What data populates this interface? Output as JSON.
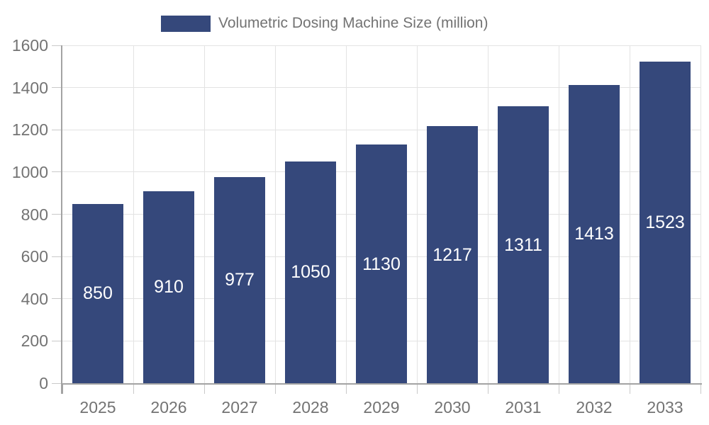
{
  "chart_data": {
    "type": "bar",
    "title": "",
    "xlabel": "",
    "ylabel": "",
    "categories": [
      "2025",
      "2026",
      "2027",
      "2028",
      "2029",
      "2030",
      "2031",
      "2032",
      "2033"
    ],
    "series": [
      {
        "name": "Volumetric Dosing Machine Size (million)",
        "values": [
          850,
          910,
          977,
          1050,
          1130,
          1217,
          1311,
          1413,
          1523
        ]
      }
    ],
    "bar_value_labels": [
      "850",
      "910",
      "977",
      "1050",
      "1130",
      "1217",
      "1311",
      "1413",
      "1523"
    ],
    "ylim": [
      0,
      1600
    ],
    "ytick_step": 200,
    "ytick_labels": [
      "0",
      "200",
      "400",
      "600",
      "800",
      "1000",
      "1200",
      "1400",
      "1600"
    ],
    "grid": true,
    "legend_position": "top",
    "colors": {
      "bar": "#35487B",
      "bar_label": "#FFFFFF",
      "axis_text": "#737373",
      "legend_text": "#737373",
      "grid_line": "#E3E3E3",
      "axis_line": "#A3A3A3",
      "tick_line": "#C9C9C9",
      "background": "#FFFFFF"
    }
  }
}
